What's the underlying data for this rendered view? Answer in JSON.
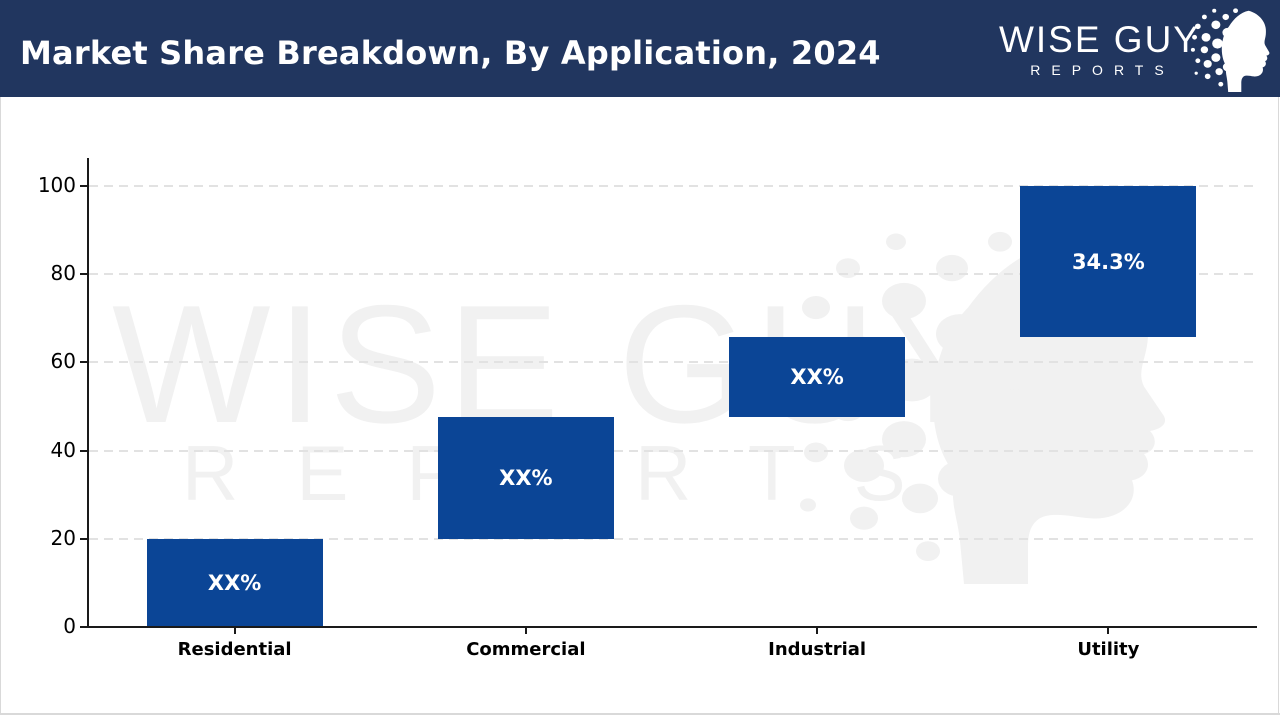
{
  "header": {
    "title": "Market Share Breakdown, By Application, 2024",
    "logo": {
      "wordmark": "WISE GUY",
      "subtext": "REPORTS"
    }
  },
  "watermark": {
    "line1": "WISE GUY",
    "line2": "REPORTS"
  },
  "colors": {
    "header_bg": "#21365F",
    "bar": "#0B4596",
    "bar_label": "#FFFFFF",
    "gridline": "#E2E2E2",
    "axis": "#1A1A1A",
    "watermark": "#F1F1F1"
  },
  "chart_data": {
    "type": "bar",
    "subtype": "waterfall-breakdown",
    "title": "Market Share Breakdown, By Application, 2024",
    "categories": [
      "Residential",
      "Commercial",
      "Industrial",
      "Utility"
    ],
    "segments": [
      {
        "category": "Residential",
        "start": 0,
        "end": 20,
        "label": "XX%"
      },
      {
        "category": "Commercial",
        "start": 20,
        "end": 47.6,
        "label": "XX%"
      },
      {
        "category": "Industrial",
        "start": 47.6,
        "end": 65.7,
        "label": "XX%"
      },
      {
        "category": "Utility",
        "start": 65.7,
        "end": 100,
        "label": "34.3%",
        "value": 34.3
      }
    ],
    "xlabel": "",
    "ylabel": "",
    "ylim": [
      0,
      100
    ],
    "yticks": [
      0,
      20,
      40,
      60,
      80,
      100
    ],
    "grid": {
      "horizontal": true,
      "style": "dashed"
    },
    "legend": "none",
    "bar_color": "#0B4596",
    "label_color": "#FFFFFF"
  }
}
